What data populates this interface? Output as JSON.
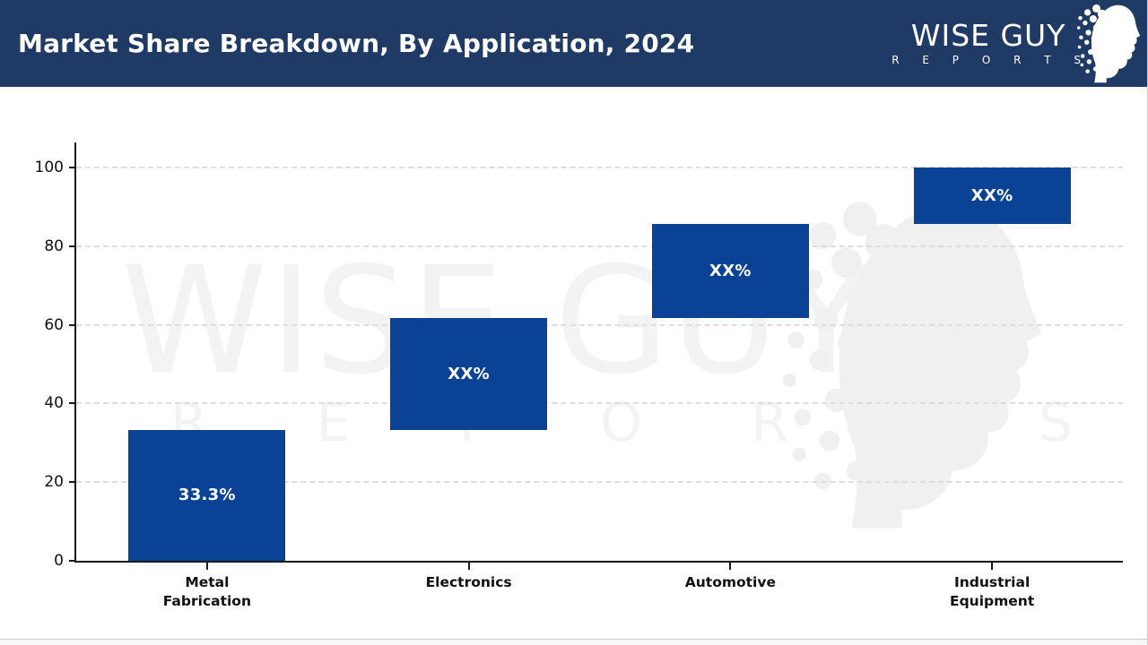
{
  "header": {
    "title": "Market Share Breakdown, By Application, 2024",
    "bg_color": "#203a66",
    "logo": {
      "name": "WISE GUY",
      "sub": "R E P O R T S"
    }
  },
  "watermark": {
    "line1": "WISE GUY",
    "line2": "R E P O R T S"
  },
  "chart_data": {
    "type": "bar",
    "subtype": "floating-segment-bars",
    "title": "Market Share Breakdown, By Application, 2024",
    "categories": [
      "Metal Fabrication",
      "Electronics",
      "Automotive",
      "Industrial Equipment"
    ],
    "bars": [
      {
        "category": "Metal Fabrication",
        "start": 0,
        "end": 33.3,
        "label": "33.3%"
      },
      {
        "category": "Electronics",
        "start": 33.3,
        "end": 61.7,
        "label": "XX%"
      },
      {
        "category": "Automotive",
        "start": 61.7,
        "end": 85.6,
        "label": "XX%"
      },
      {
        "category": "Industrial Equipment",
        "start": 85.6,
        "end": 100,
        "label": "XX%"
      }
    ],
    "xlabel": "",
    "ylabel": "",
    "ylim": [
      0,
      100
    ],
    "yticks": [
      0,
      20,
      40,
      60,
      80,
      100
    ],
    "grid": "horizontal-dashed",
    "legend": "none",
    "bar_color": "#0a4295",
    "grid_color": "#dedede",
    "axis_color": "#1a1a1a"
  }
}
